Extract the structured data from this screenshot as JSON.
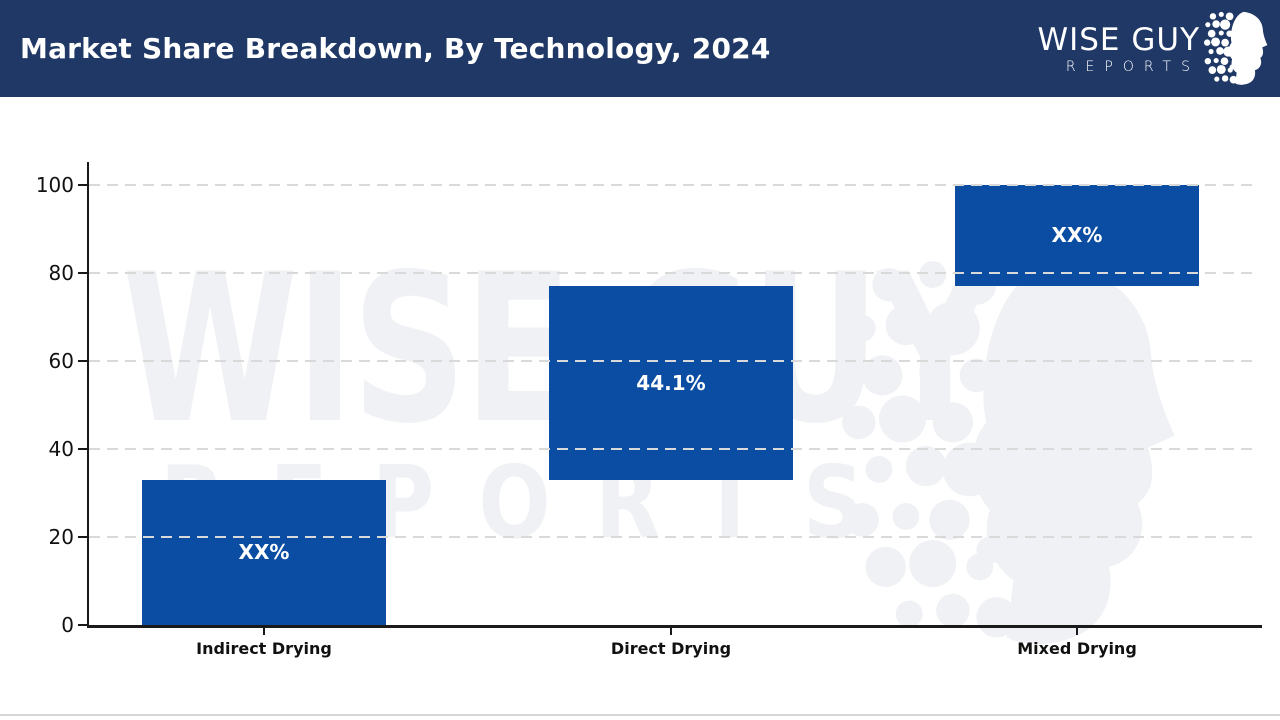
{
  "header": {
    "title": "Market Share Breakdown, By Technology, 2024",
    "bg_color": "#1f3866",
    "logo": {
      "line1": "WISE GUY",
      "line2": "REPORTS"
    }
  },
  "watermark": {
    "line1": "WISE GUY",
    "line2": "REPORTS",
    "color": "#eff1f4"
  },
  "chart_data": {
    "type": "bar",
    "subtype": "waterfall",
    "title": "Market Share Breakdown, By Technology, 2024",
    "categories": [
      "Indirect Drying",
      "Direct Drying",
      "Mixed Drying"
    ],
    "segments": [
      {
        "category": "Indirect Drying",
        "start": 0,
        "end": 33,
        "label": "XX%"
      },
      {
        "category": "Direct Drying",
        "start": 33,
        "end": 77.1,
        "label": "44.1%",
        "value": 44.1
      },
      {
        "category": "Mixed Drying",
        "start": 77.1,
        "end": 100,
        "label": "XX%"
      }
    ],
    "ylabel": "",
    "xlabel": "",
    "y_ticks": [
      0,
      20,
      40,
      60,
      80,
      100
    ],
    "ylim": [
      0,
      100
    ],
    "bar_color": "#0b4da2",
    "bar_label_color": "#ffffff",
    "grid": "horizontal dashed, drawn above bars",
    "legend": "none"
  }
}
